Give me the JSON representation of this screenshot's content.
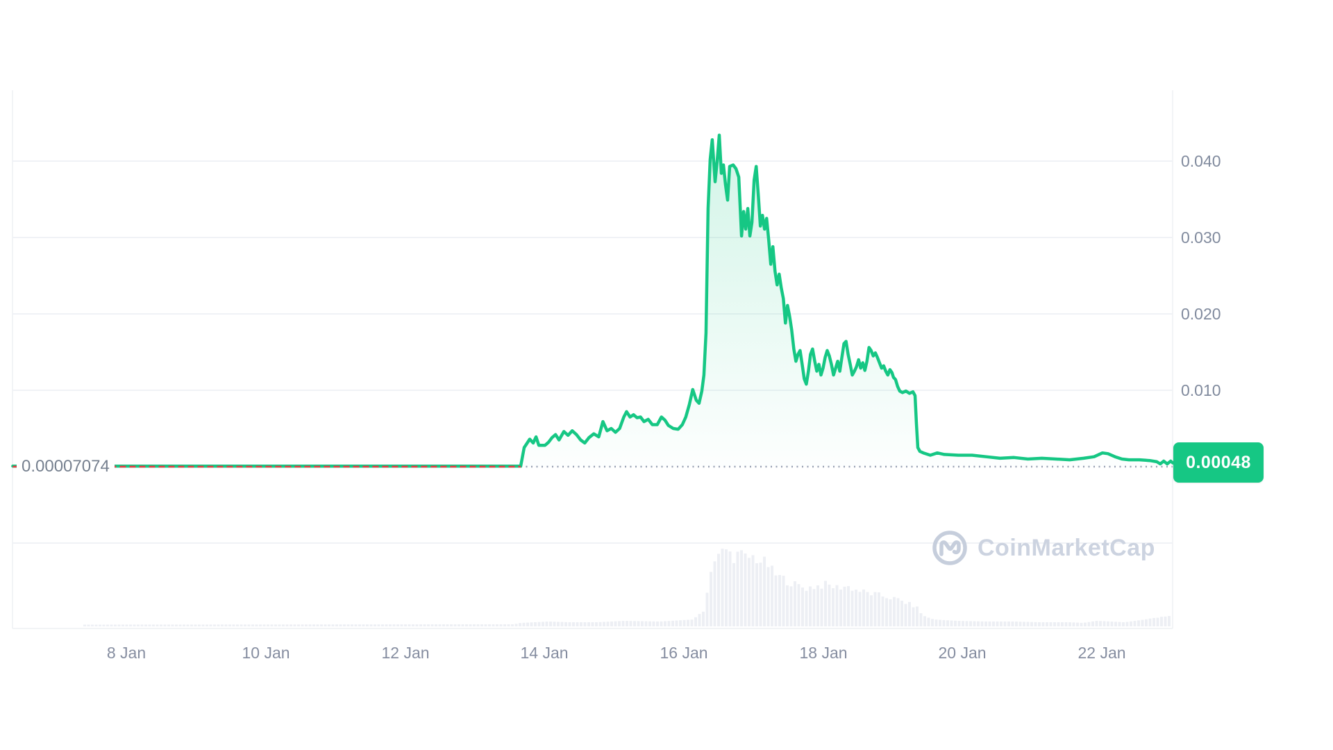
{
  "watermark": {
    "brand": "CoinMarketCap"
  },
  "price_badge": {
    "label": "0.00048",
    "bg_color": "#16c784",
    "text_color": "#ffffff"
  },
  "baseline_label": {
    "text": "0.00007074",
    "value": 7.074e-05
  },
  "colors": {
    "line_green": "#16c784",
    "dash_red": "#ea3943",
    "dotted_baseline": "#98a1b3",
    "gridline": "#f0f2f6",
    "plot_border": "#eef0f4",
    "volume_bar": "#edeff4",
    "axis_text": "#808a9d",
    "watermark_text": "#ccd3e0"
  },
  "chart_data": {
    "type": "area",
    "title": "",
    "xlabel": "",
    "ylabel": "",
    "legend": "none",
    "grid": "horizontal",
    "x_axis": {
      "tick_labels": [
        "8 Jan",
        "10 Jan",
        "12 Jan",
        "14 Jan",
        "16 Jan",
        "18 Jan",
        "20 Jan",
        "22 Jan"
      ],
      "tick_days": [
        8,
        10,
        12,
        14,
        16,
        18,
        20,
        22
      ],
      "range_days": [
        6.37,
        23.02
      ]
    },
    "y_axis": {
      "tick_labels": [
        "0.040",
        "0.030",
        "0.020",
        "0.010"
      ],
      "tick_values": [
        0.04,
        0.03,
        0.02,
        0.01
      ],
      "range": [
        0,
        0.05
      ],
      "side": "right"
    },
    "baseline_value": 7.074e-05,
    "last_price": 0.00048,
    "peak_price": 0.0434,
    "series": [
      {
        "name": "price",
        "points": [
          [
            6.37,
            7e-05
          ],
          [
            13.66,
            7e-05
          ],
          [
            13.71,
            0.0025
          ],
          [
            13.79,
            0.0036
          ],
          [
            13.84,
            0.0031
          ],
          [
            13.88,
            0.0039
          ],
          [
            13.92,
            0.0028
          ],
          [
            14.01,
            0.0028
          ],
          [
            14.06,
            0.0032
          ],
          [
            14.11,
            0.0038
          ],
          [
            14.16,
            0.0042
          ],
          [
            14.21,
            0.0035
          ],
          [
            14.28,
            0.0046
          ],
          [
            14.34,
            0.0041
          ],
          [
            14.4,
            0.0047
          ],
          [
            14.46,
            0.0042
          ],
          [
            14.52,
            0.0035
          ],
          [
            14.58,
            0.0031
          ],
          [
            14.64,
            0.0038
          ],
          [
            14.71,
            0.0043
          ],
          [
            14.78,
            0.0039
          ],
          [
            14.84,
            0.0059
          ],
          [
            14.9,
            0.0047
          ],
          [
            14.96,
            0.005
          ],
          [
            15.02,
            0.0045
          ],
          [
            15.08,
            0.005
          ],
          [
            15.14,
            0.0065
          ],
          [
            15.18,
            0.0072
          ],
          [
            15.23,
            0.0065
          ],
          [
            15.28,
            0.0068
          ],
          [
            15.33,
            0.0064
          ],
          [
            15.38,
            0.0065
          ],
          [
            15.43,
            0.0059
          ],
          [
            15.49,
            0.0062
          ],
          [
            15.55,
            0.0055
          ],
          [
            15.62,
            0.0055
          ],
          [
            15.68,
            0.0065
          ],
          [
            15.73,
            0.0061
          ],
          [
            15.78,
            0.0054
          ],
          [
            15.85,
            0.005
          ],
          [
            15.92,
            0.0049
          ],
          [
            15.98,
            0.0055
          ],
          [
            16.03,
            0.0065
          ],
          [
            16.08,
            0.0081
          ],
          [
            16.13,
            0.0101
          ],
          [
            16.18,
            0.0087
          ],
          [
            16.22,
            0.0083
          ],
          [
            16.26,
            0.0099
          ],
          [
            16.29,
            0.012
          ],
          [
            16.32,
            0.0175
          ],
          [
            16.35,
            0.0338
          ],
          [
            16.38,
            0.0402
          ],
          [
            16.41,
            0.0428
          ],
          [
            16.45,
            0.0373
          ],
          [
            16.48,
            0.04
          ],
          [
            16.51,
            0.0434
          ],
          [
            16.54,
            0.0384
          ],
          [
            16.57,
            0.0395
          ],
          [
            16.6,
            0.0369
          ],
          [
            16.63,
            0.0349
          ],
          [
            16.66,
            0.0393
          ],
          [
            16.71,
            0.0395
          ],
          [
            16.75,
            0.039
          ],
          [
            16.79,
            0.0379
          ],
          [
            16.83,
            0.0302
          ],
          [
            16.86,
            0.0334
          ],
          [
            16.89,
            0.0311
          ],
          [
            16.92,
            0.0338
          ],
          [
            16.95,
            0.0302
          ],
          [
            16.98,
            0.032
          ],
          [
            17.01,
            0.0375
          ],
          [
            17.04,
            0.0393
          ],
          [
            17.07,
            0.0356
          ],
          [
            17.1,
            0.0315
          ],
          [
            17.13,
            0.0329
          ],
          [
            17.16,
            0.0311
          ],
          [
            17.19,
            0.0325
          ],
          [
            17.22,
            0.0297
          ],
          [
            17.25,
            0.0265
          ],
          [
            17.28,
            0.0288
          ],
          [
            17.31,
            0.0256
          ],
          [
            17.34,
            0.0238
          ],
          [
            17.37,
            0.0252
          ],
          [
            17.4,
            0.0234
          ],
          [
            17.43,
            0.022
          ],
          [
            17.46,
            0.0188
          ],
          [
            17.49,
            0.0211
          ],
          [
            17.52,
            0.0197
          ],
          [
            17.55,
            0.0179
          ],
          [
            17.58,
            0.0154
          ],
          [
            17.61,
            0.0138
          ],
          [
            17.64,
            0.0147
          ],
          [
            17.67,
            0.0152
          ],
          [
            17.7,
            0.0134
          ],
          [
            17.73,
            0.0115
          ],
          [
            17.76,
            0.0108
          ],
          [
            17.79,
            0.0125
          ],
          [
            17.82,
            0.0147
          ],
          [
            17.85,
            0.0154
          ],
          [
            17.88,
            0.0138
          ],
          [
            17.91,
            0.0125
          ],
          [
            17.94,
            0.0134
          ],
          [
            17.97,
            0.012
          ],
          [
            18.0,
            0.0129
          ],
          [
            18.03,
            0.0143
          ],
          [
            18.06,
            0.0152
          ],
          [
            18.09,
            0.0145
          ],
          [
            18.12,
            0.0134
          ],
          [
            18.15,
            0.012
          ],
          [
            18.18,
            0.0129
          ],
          [
            18.21,
            0.0138
          ],
          [
            18.24,
            0.0125
          ],
          [
            18.27,
            0.0143
          ],
          [
            18.3,
            0.0161
          ],
          [
            18.33,
            0.0164
          ],
          [
            18.36,
            0.0147
          ],
          [
            18.39,
            0.0134
          ],
          [
            18.42,
            0.012
          ],
          [
            18.45,
            0.0125
          ],
          [
            18.48,
            0.0131
          ],
          [
            18.51,
            0.014
          ],
          [
            18.54,
            0.0129
          ],
          [
            18.57,
            0.0136
          ],
          [
            18.6,
            0.0126
          ],
          [
            18.63,
            0.0138
          ],
          [
            18.66,
            0.0156
          ],
          [
            18.69,
            0.0152
          ],
          [
            18.72,
            0.0145
          ],
          [
            18.75,
            0.0149
          ],
          [
            18.78,
            0.0143
          ],
          [
            18.81,
            0.0136
          ],
          [
            18.84,
            0.0129
          ],
          [
            18.87,
            0.0132
          ],
          [
            18.9,
            0.0125
          ],
          [
            18.93,
            0.012
          ],
          [
            18.96,
            0.0127
          ],
          [
            18.99,
            0.0123
          ],
          [
            19.01,
            0.0117
          ],
          [
            19.04,
            0.0114
          ],
          [
            19.07,
            0.0105
          ],
          [
            19.1,
            0.0099
          ],
          [
            19.14,
            0.0097
          ],
          [
            19.19,
            0.0099
          ],
          [
            19.24,
            0.0096
          ],
          [
            19.29,
            0.0098
          ],
          [
            19.32,
            0.0093
          ],
          [
            19.34,
            0.0056
          ],
          [
            19.36,
            0.0025
          ],
          [
            19.39,
            0.002
          ],
          [
            19.44,
            0.0018
          ],
          [
            19.54,
            0.0015
          ],
          [
            19.64,
            0.0018
          ],
          [
            19.74,
            0.0016
          ],
          [
            19.94,
            0.0015
          ],
          [
            20.14,
            0.0015
          ],
          [
            20.34,
            0.0013
          ],
          [
            20.54,
            0.0011
          ],
          [
            20.74,
            0.0012
          ],
          [
            20.94,
            0.001
          ],
          [
            21.14,
            0.0011
          ],
          [
            21.34,
            0.001
          ],
          [
            21.54,
            0.0009
          ],
          [
            21.74,
            0.0011
          ],
          [
            21.89,
            0.0013
          ],
          [
            22.01,
            0.0018
          ],
          [
            22.09,
            0.0017
          ],
          [
            22.19,
            0.0013
          ],
          [
            22.29,
            0.001
          ],
          [
            22.39,
            0.0009
          ],
          [
            22.54,
            0.0009
          ],
          [
            22.69,
            0.0008
          ],
          [
            22.79,
            0.00065
          ],
          [
            22.84,
            0.00036
          ],
          [
            22.89,
            0.00073
          ],
          [
            22.94,
            0.00036
          ],
          [
            22.99,
            0.00073
          ],
          [
            23.02,
            0.00048
          ]
        ]
      }
    ],
    "volume_profile": [
      [
        7.38,
        2.5
      ],
      [
        13.56,
        3
      ],
      [
        13.66,
        5
      ],
      [
        14.06,
        7
      ],
      [
        14.36,
        6
      ],
      [
        14.76,
        6
      ],
      [
        15.15,
        8
      ],
      [
        15.65,
        7
      ],
      [
        16.15,
        10
      ],
      [
        16.3,
        25
      ],
      [
        16.4,
        90
      ],
      [
        16.5,
        100
      ],
      [
        16.6,
        112
      ],
      [
        16.7,
        100
      ],
      [
        16.8,
        104
      ],
      [
        16.9,
        98
      ],
      [
        17.0,
        100
      ],
      [
        17.1,
        94
      ],
      [
        17.2,
        90
      ],
      [
        17.3,
        75
      ],
      [
        17.4,
        70
      ],
      [
        17.5,
        65
      ],
      [
        17.6,
        60
      ],
      [
        17.75,
        55
      ],
      [
        17.9,
        58
      ],
      [
        18.04,
        60
      ],
      [
        18.19,
        56
      ],
      [
        18.34,
        58
      ],
      [
        18.49,
        52
      ],
      [
        18.64,
        48
      ],
      [
        18.79,
        45
      ],
      [
        18.94,
        42
      ],
      [
        19.09,
        38
      ],
      [
        19.24,
        32
      ],
      [
        19.34,
        28
      ],
      [
        19.44,
        15
      ],
      [
        19.59,
        10
      ],
      [
        19.74,
        9
      ],
      [
        19.94,
        8
      ],
      [
        20.34,
        7
      ],
      [
        20.73,
        7
      ],
      [
        21.13,
        6
      ],
      [
        21.53,
        6
      ],
      [
        21.73,
        5
      ],
      [
        21.93,
        8
      ],
      [
        22.13,
        7
      ],
      [
        22.33,
        6
      ],
      [
        22.63,
        10
      ],
      [
        22.83,
        14
      ],
      [
        23.02,
        16
      ]
    ]
  }
}
